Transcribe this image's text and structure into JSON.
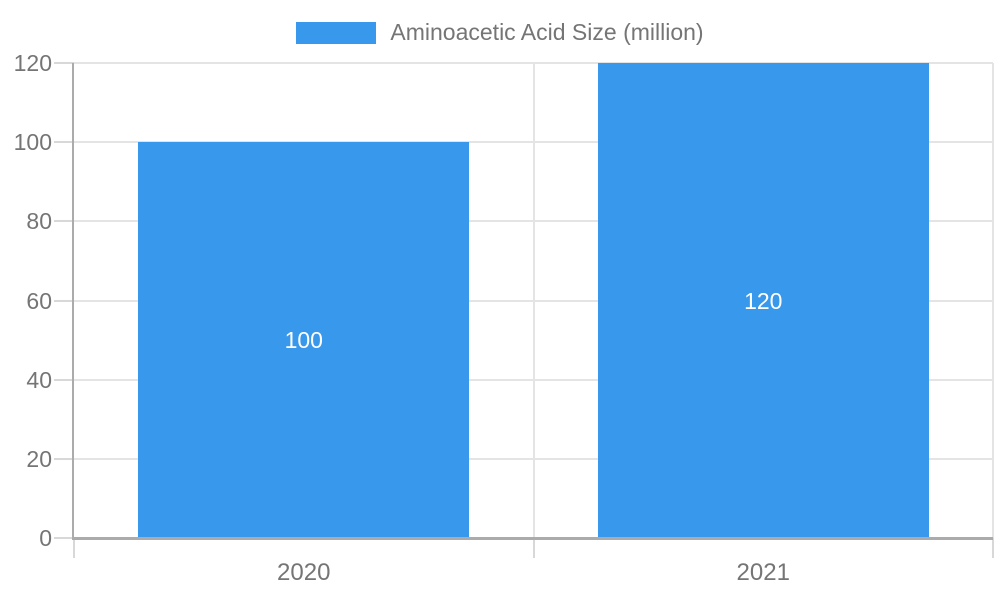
{
  "legend": {
    "label": "Aminoacetic Acid Size (million)"
  },
  "colors": {
    "bar": "#3899ec",
    "label_text": "#757575",
    "value_text": "#ffffff",
    "grid": "#e4e4e4",
    "tick": "#d8d8d8",
    "axis": "#ababab",
    "background": "#ffffff"
  },
  "chart_data": {
    "type": "bar",
    "title": "",
    "categories": [
      "2020",
      "2021"
    ],
    "series": [
      {
        "name": "Aminoacetic Acid Size (million)",
        "color": "#3899ec",
        "values": [
          100,
          120
        ]
      }
    ],
    "data_labels": [
      "100",
      "120"
    ],
    "xlabel": "",
    "ylabel": "",
    "ylim": [
      0,
      120
    ],
    "yticks": [
      0,
      20,
      40,
      60,
      80,
      100,
      120
    ],
    "grid": true,
    "legend_position": "top-center",
    "bar_label_position": "inside-center"
  }
}
